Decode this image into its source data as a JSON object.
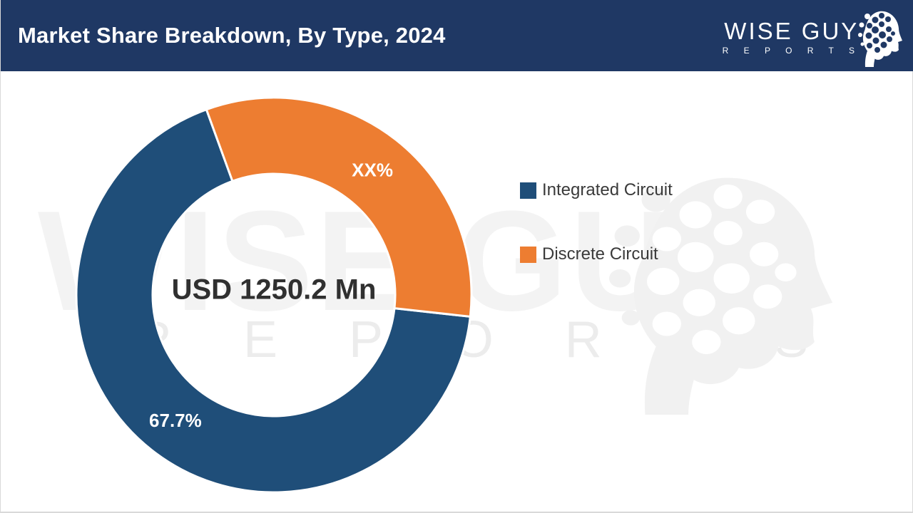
{
  "header": {
    "title": "Market Share Breakdown, By Type, 2024",
    "logo": {
      "wordmark": "WISE GUY",
      "subtitle": "R E P O R T S"
    }
  },
  "watermark": {
    "wordmark": "WISE GUY",
    "subtitle": "R E P O R T S"
  },
  "colors": {
    "header_bg": "#1F3864",
    "integrated_circuit_blue": "#1F4E79",
    "discrete_circuit_orange": "#ED7D31",
    "center_text": "#303030",
    "watermark_gray": "#F1F1F1",
    "border_gray": "#D9D9D9"
  },
  "chart_data": {
    "type": "pie",
    "donut": true,
    "title": "Market Share Breakdown, By Type, 2024",
    "center_label": "USD 1250.2 Mn",
    "categories": [
      "Integrated Circuit",
      "Discrete Circuit"
    ],
    "values": [
      67.7,
      32.3
    ],
    "slice_labels": [
      "67.7%",
      "XX%"
    ],
    "colors": [
      "#1F4E79",
      "#ED7D31"
    ],
    "start_angle_deg": -6.3,
    "direction": "clockwise",
    "inner_radius_ratio": 0.615,
    "legend_position": "right",
    "legend_entries": [
      "Integrated Circuit",
      "Discrete Circuit"
    ]
  }
}
